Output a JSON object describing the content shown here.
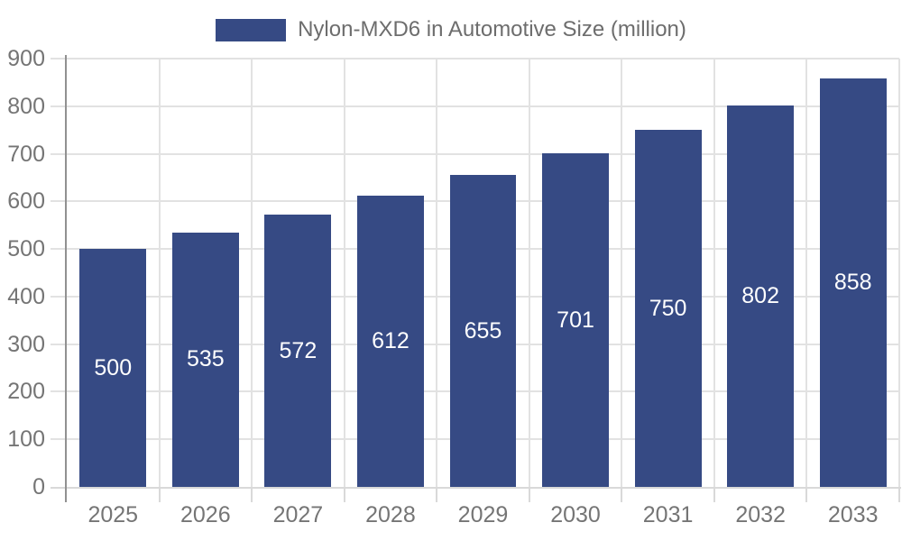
{
  "legend": {
    "label": "Nylon-MXD6 in Automotive Size (million)"
  },
  "chart_data": {
    "type": "bar",
    "title": "Nylon-MXD6 in Automotive Size (million)",
    "series_name": "Nylon-MXD6 in Automotive Size (million)",
    "categories": [
      "2025",
      "2026",
      "2027",
      "2028",
      "2029",
      "2030",
      "2031",
      "2032",
      "2033"
    ],
    "values": [
      500,
      535,
      572,
      612,
      655,
      701,
      750,
      802,
      858
    ],
    "xlabel": "",
    "ylabel": "",
    "ylim": [
      0,
      900
    ],
    "ytick_step": 100,
    "yticks": [
      0,
      100,
      200,
      300,
      400,
      500,
      600,
      700,
      800,
      900
    ],
    "grid": true,
    "legend_position": "top",
    "bar_value_labels": "inside-center",
    "colors": {
      "bar": "#364a84",
      "bar_label": "#ffffff",
      "axis_text": "#757575",
      "legend_text": "#6d6d6d",
      "gridline": "#e2e2e2",
      "y_axis_line": "#919191",
      "x_axis_line": "#d9d9d9"
    }
  }
}
